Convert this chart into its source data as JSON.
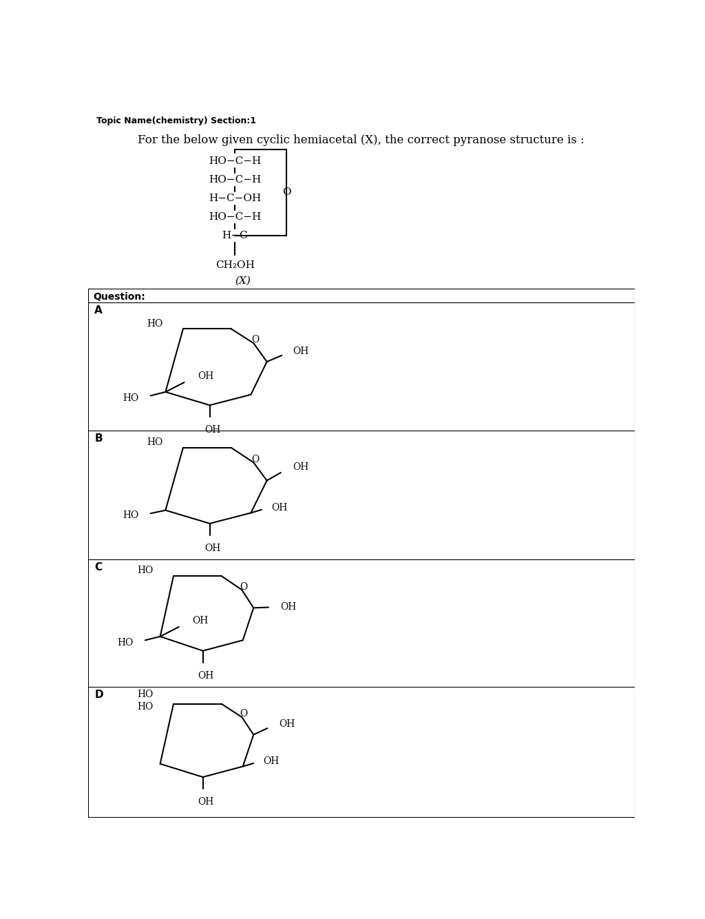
{
  "title": "For the below given cyclic hemiacetal (X), the correct pyranose structure is :",
  "topic_text": "Topic Name(chemistry) Section:1",
  "question_label": "Question:",
  "background_color": "#ffffff",
  "line_color": "#000000",
  "text_color": "#000000",
  "font_size_title": 12,
  "font_size_label": 10,
  "font_size_option": 11,
  "font_size_small": 10,
  "options": [
    "A",
    "B",
    "C",
    "D"
  ],
  "row_texts": [
    "HO−C−H",
    "HO−C−H",
    "H−C−OH",
    "HO−C−H",
    "H−C"
  ],
  "bottom_text": "CH₂OH",
  "x_label": "(X)"
}
